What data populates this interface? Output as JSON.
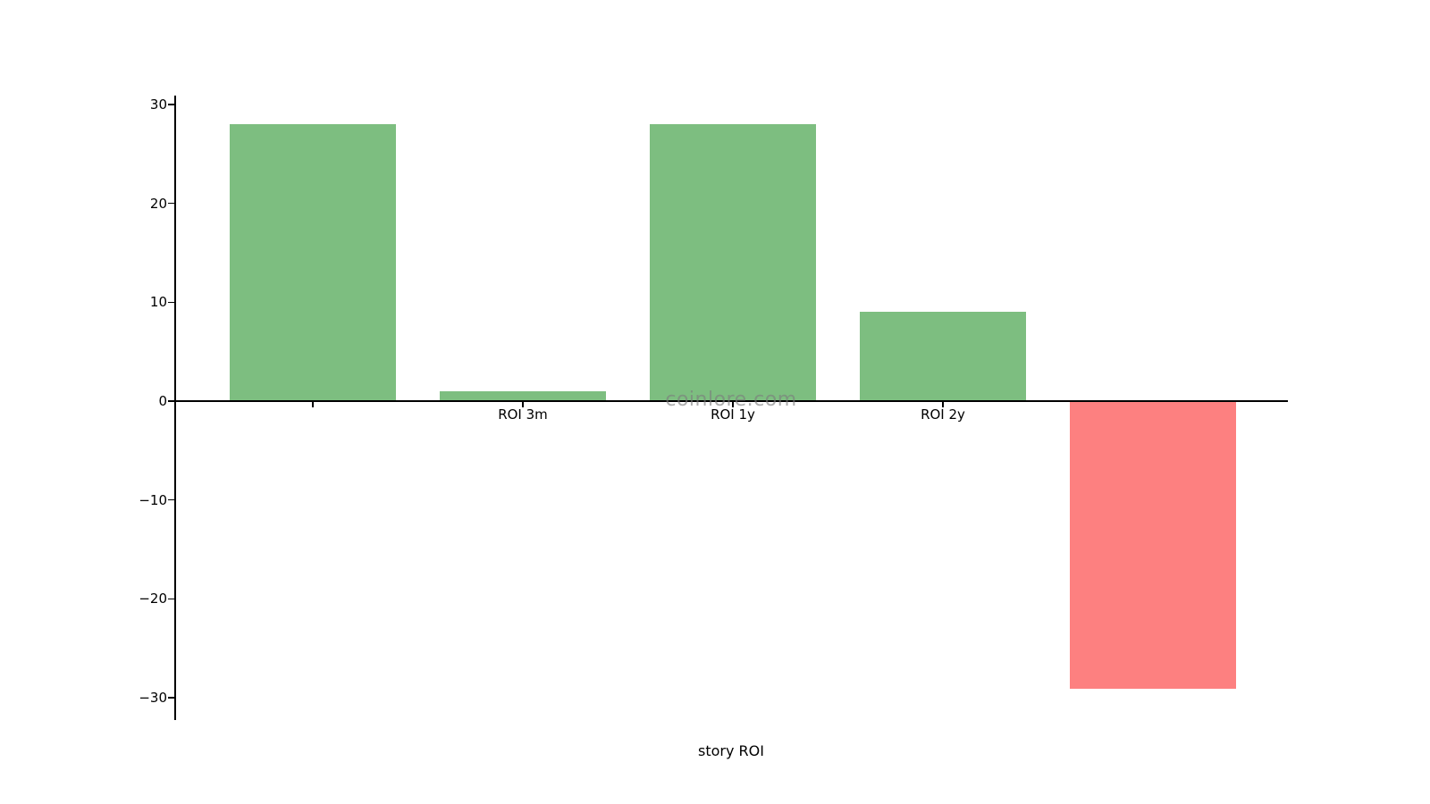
{
  "watermark": "coinlore.com",
  "chart_data": {
    "type": "bar",
    "title": "",
    "xlabel": "story ROI",
    "ylabel": "",
    "categories": [
      "",
      "ROI 3m",
      "ROI 1y",
      "ROI 2y",
      ""
    ],
    "values": [
      28,
      1,
      28,
      9,
      -29
    ],
    "yticks": [
      30,
      20,
      10,
      0,
      -10,
      -20,
      -30
    ],
    "ylim": [
      -32.5,
      31
    ],
    "grid": false,
    "legend": null,
    "colors": {
      "positive_bar": "#7dbe80",
      "negative_bar": "#fd8080",
      "axis": "#000000",
      "tick_label": "#000000",
      "watermark": "#7d7d7d"
    }
  }
}
